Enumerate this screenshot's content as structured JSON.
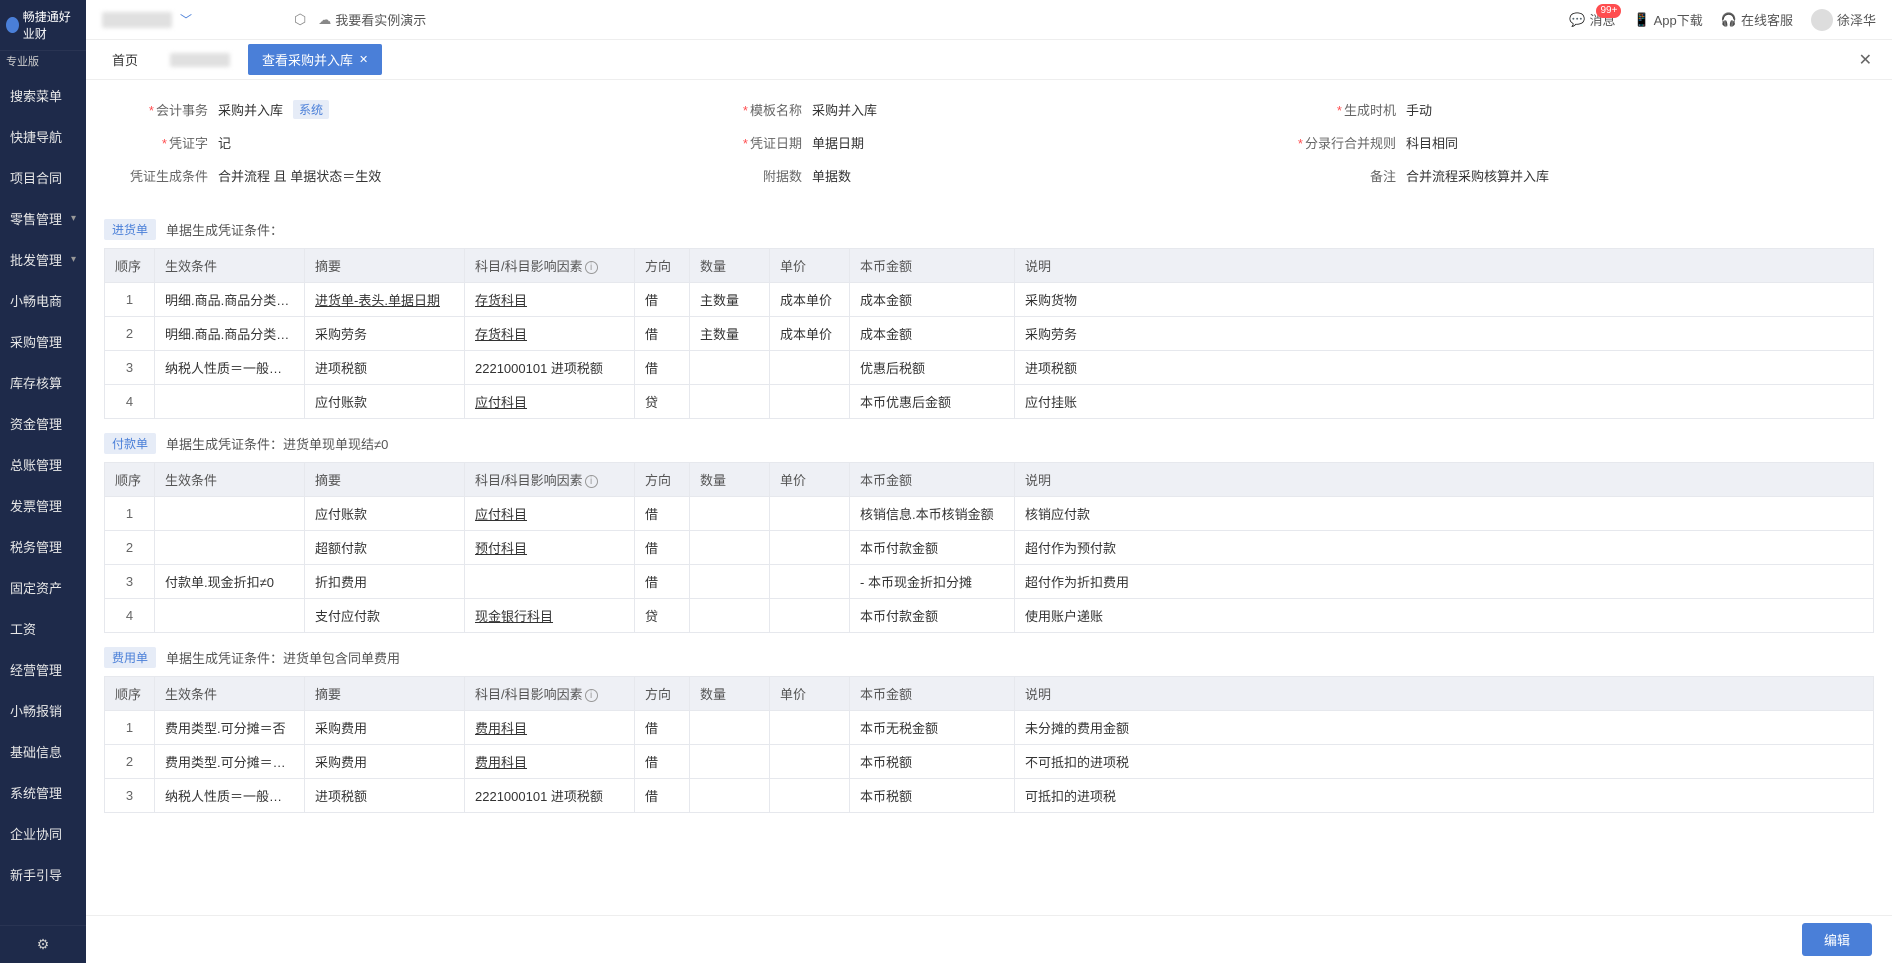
{
  "sidebar": {
    "logo_text": "畅捷通好业财",
    "edition": "专业版",
    "items": [
      {
        "label": "搜索菜单",
        "has_sub": false
      },
      {
        "label": "快捷导航",
        "has_sub": false
      },
      {
        "label": "项目合同",
        "has_sub": false
      },
      {
        "label": "零售管理",
        "has_sub": true
      },
      {
        "label": "批发管理",
        "has_sub": true
      },
      {
        "label": "小畅电商",
        "has_sub": false
      },
      {
        "label": "采购管理",
        "has_sub": false
      },
      {
        "label": "库存核算",
        "has_sub": false
      },
      {
        "label": "资金管理",
        "has_sub": false
      },
      {
        "label": "总账管理",
        "has_sub": false
      },
      {
        "label": "发票管理",
        "has_sub": false
      },
      {
        "label": "税务管理",
        "has_sub": false
      },
      {
        "label": "固定资产",
        "has_sub": false
      },
      {
        "label": "工资",
        "has_sub": false
      },
      {
        "label": "经营管理",
        "has_sub": false
      },
      {
        "label": "小畅报销",
        "has_sub": false
      },
      {
        "label": "基础信息",
        "has_sub": false
      },
      {
        "label": "系统管理",
        "has_sub": false
      },
      {
        "label": "企业协同",
        "has_sub": false
      },
      {
        "label": "新手引导",
        "has_sub": false
      }
    ]
  },
  "topbar": {
    "demo_link": "我要看实例演示",
    "msg": "消息",
    "msg_badge": "99+",
    "app_download": "App下载",
    "service": "在线客服",
    "username": "徐泽华"
  },
  "tabs": {
    "home": "首页",
    "active": "查看采购并入库",
    "close_all_title": "关闭全部"
  },
  "form": {
    "account_biz_label": "会计事务",
    "account_biz_value": "采购并入库",
    "account_biz_tag": "系统",
    "template_name_label": "模板名称",
    "template_name_value": "采购并入库",
    "gen_time_label": "生成时机",
    "gen_time_value": "手动",
    "voucher_word_label": "凭证字",
    "voucher_word_value": "记",
    "voucher_date_label": "凭证日期",
    "voucher_date_value": "单据日期",
    "merge_rule_label": "分录行合并规则",
    "merge_rule_value": "科目相同",
    "gen_cond_label": "凭证生成条件",
    "gen_cond_value": "合并流程 且 单据状态＝生效",
    "attach_count_label": "附据数",
    "attach_count_value": "单据数",
    "remark_label": "备注",
    "remark_value": "合并流程采购核算并入库"
  },
  "columns": [
    "顺序",
    "生效条件",
    "摘要",
    "科目/科目影响因素",
    "方向",
    "数量",
    "单价",
    "本币金额",
    "说明"
  ],
  "col_info_suffix": "ⓘ",
  "sections": [
    {
      "badge": "进货单",
      "cond": "单据生成凭证条件：",
      "rows": [
        {
          "seq": "1",
          "cond": "明细.商品.商品分类＝货物",
          "summary": "进货单-表头.单据日期",
          "subject": "存货科目",
          "subject_link": true,
          "dir": "借",
          "qty": "主数量",
          "price": "成本单价",
          "amount": "成本金额",
          "desc": "采购货物"
        },
        {
          "seq": "2",
          "cond": "明细.商品.商品分类＝劳务",
          "summary": "采购劳务",
          "subject": "存货科目",
          "subject_link": true,
          "dir": "借",
          "qty": "主数量",
          "price": "成本单价",
          "amount": "成本金额",
          "desc": "采购劳务"
        },
        {
          "seq": "3",
          "cond": "纳税人性质＝一般纳税人 且 发",
          "summary": "进项税额",
          "subject": "2221000101 进项税额",
          "subject_link": false,
          "dir": "借",
          "qty": "",
          "price": "",
          "amount": "优惠后税额",
          "desc": "进项税额"
        },
        {
          "seq": "4",
          "cond": "",
          "summary": "应付账款",
          "subject": "应付科目",
          "subject_link": true,
          "dir": "贷",
          "qty": "",
          "price": "",
          "amount": "本币优惠后金额",
          "desc": "应付挂账"
        }
      ]
    },
    {
      "badge": "付款单",
      "cond": "单据生成凭证条件：进货单现单现结≠0",
      "rows": [
        {
          "seq": "1",
          "cond": "",
          "summary": "应付账款",
          "subject": "应付科目",
          "subject_link": true,
          "dir": "借",
          "qty": "",
          "price": "",
          "amount": "核销信息.本币核销金额",
          "desc": "核销应付款"
        },
        {
          "seq": "2",
          "cond": "",
          "summary": "超额付款",
          "subject": "预付科目",
          "subject_link": true,
          "dir": "借",
          "qty": "",
          "price": "",
          "amount": "本币付款金额",
          "desc": "超付作为预付款"
        },
        {
          "seq": "3",
          "cond": "付款单.现金折扣≠0",
          "summary": "折扣费用",
          "subject": "",
          "subject_link": false,
          "dir": "借",
          "qty": "",
          "price": "",
          "amount": "- 本币现金折扣分摊",
          "desc": "超付作为折扣费用"
        },
        {
          "seq": "4",
          "cond": "",
          "summary": "支付应付款",
          "subject": "现金银行科目",
          "subject_link": true,
          "dir": "贷",
          "qty": "",
          "price": "",
          "amount": "本币付款金额",
          "desc": "使用账户递账"
        }
      ]
    },
    {
      "badge": "费用单",
      "cond": "单据生成凭证条件：进货单包含同单费用",
      "rows": [
        {
          "seq": "1",
          "cond": "费用类型.可分摊＝否",
          "summary": "采购费用",
          "subject": "费用科目",
          "subject_link": true,
          "dir": "借",
          "qty": "",
          "price": "",
          "amount": "本币无税金额",
          "desc": "未分摊的费用金额"
        },
        {
          "seq": "2",
          "cond": "费用类型.可分摊＝否 且 (纳税",
          "summary": "采购费用",
          "subject": "费用科目",
          "subject_link": true,
          "dir": "借",
          "qty": "",
          "price": "",
          "amount": "本币税额",
          "desc": "不可抵扣的进项税"
        },
        {
          "seq": "3",
          "cond": "纳税人性质＝一般纳税人 且 (",
          "summary": "进项税额",
          "subject": "2221000101 进项税额",
          "subject_link": false,
          "dir": "借",
          "qty": "",
          "price": "",
          "amount": "本币税额",
          "desc": "可抵扣的进项税"
        }
      ]
    }
  ],
  "footer": {
    "edit_btn": "编辑"
  },
  "colors": {
    "sidebar_bg": "#1e2a4a",
    "primary": "#4a7fd8",
    "badge_bg": "#e6ecf7",
    "th_bg": "#eef0f5",
    "border": "#e6e8ed",
    "danger": "#ff4d4f"
  }
}
